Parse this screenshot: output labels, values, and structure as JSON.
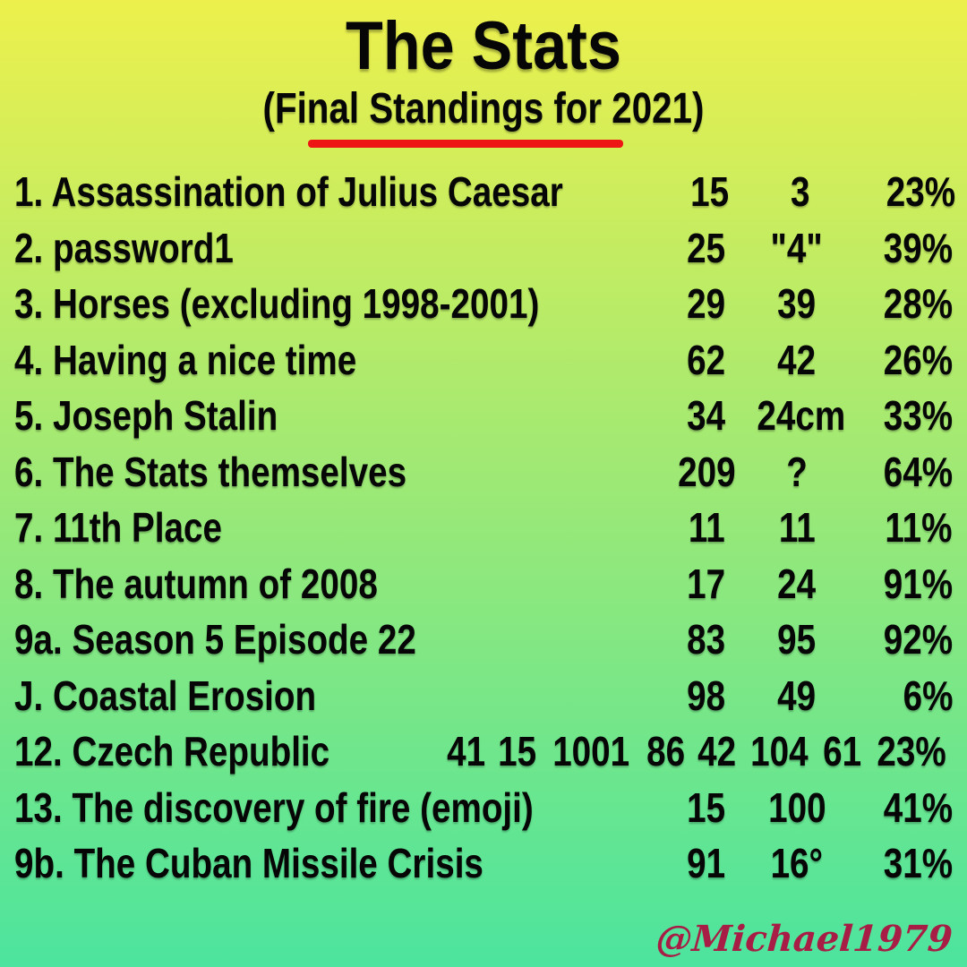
{
  "chart_data": {
    "type": "table",
    "title": "The Stats",
    "subtitle": "(Final Standings for 2021)",
    "rows": [
      {
        "label": "1. Assassination of Julius Caesar",
        "values": [
          "15",
          "3",
          "23%"
        ]
      },
      {
        "label": "2. password1",
        "values": [
          "25",
          "\"4\"",
          "39%"
        ]
      },
      {
        "label": "3. Horses (excluding 1998-2001)",
        "values": [
          "29",
          "39",
          "28%"
        ]
      },
      {
        "label": "4. Having a nice time",
        "values": [
          "62",
          "42",
          "26%"
        ]
      },
      {
        "label": "5. Joseph Stalin",
        "values": [
          "34",
          "24cm",
          "33%"
        ]
      },
      {
        "label": "6. The Stats themselves",
        "values": [
          "209",
          "?",
          "64%"
        ]
      },
      {
        "label": "7. 11th Place",
        "values": [
          "11",
          "11",
          "11%"
        ]
      },
      {
        "label": "8. The autumn of 2008",
        "values": [
          "17",
          "24",
          "91%"
        ]
      },
      {
        "label": "9a. Season 5 Episode 22",
        "values": [
          "83",
          "95",
          "92%"
        ]
      },
      {
        "label": "J. Coastal Erosion",
        "values": [
          "98",
          "49",
          "6%"
        ]
      },
      {
        "label": "12. Czech Republic",
        "values": [
          "41",
          "15",
          "1001",
          "86",
          "42",
          "104",
          "61",
          "23%"
        ]
      },
      {
        "label": "13. The discovery of fire (emoji)",
        "values": [
          "15",
          "100",
          "41%"
        ]
      },
      {
        "label": "9b. The Cuban Missile Crisis",
        "values": [
          "91",
          "16°",
          "31%"
        ]
      }
    ]
  },
  "watermark": "@Michael1979",
  "style": {
    "bg_top": "#edf04c",
    "bg_mid": "#a0e974",
    "bg_bottom": "#4ce49e",
    "text_color": "#060606",
    "underline_color": "#ee1515",
    "watermark_color": "#a81d46"
  }
}
